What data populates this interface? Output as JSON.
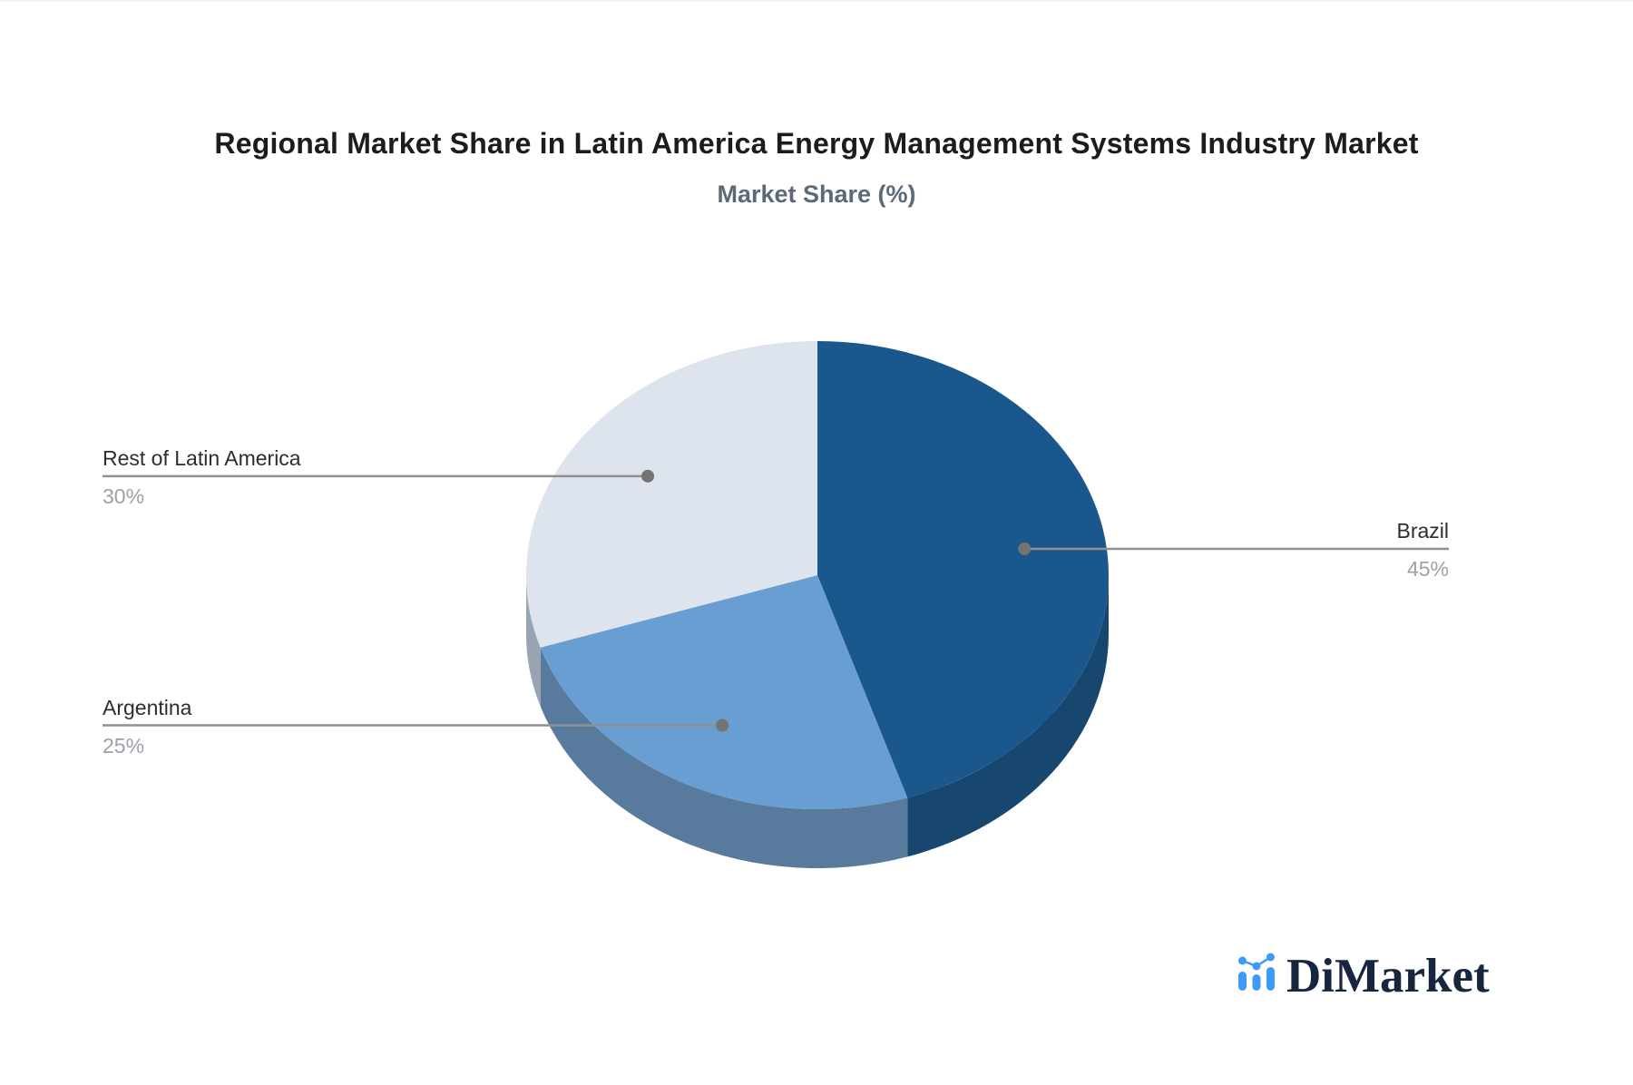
{
  "header": {
    "title": "Regional Market Share in Latin America Energy Management Systems Industry Market",
    "subtitle": "Market Share (%)"
  },
  "chart_data": {
    "type": "pie",
    "style": "3d",
    "title": "Regional Market Share in Latin America Energy Management Systems Industry Market",
    "subtitle": "Market Share (%)",
    "unit": "%",
    "direction": "clockwise",
    "start_angle_deg": 0,
    "legend_position": "none",
    "labels_layout": "leader-lines",
    "slices": [
      {
        "label": "Brazil",
        "value": 45,
        "value_label": "45%",
        "color": "#1A578D",
        "side_color": "#17466F",
        "label_side": "right"
      },
      {
        "label": "Argentina",
        "value": 25,
        "value_label": "25%",
        "color": "#689ED2",
        "side_color": "#587A9C",
        "label_side": "left"
      },
      {
        "label": "Rest of Latin America",
        "value": 30,
        "value_label": "30%",
        "color": "#DDE4EE",
        "side_color": "#99A4B2",
        "label_side": "left"
      }
    ],
    "colors": {
      "background": "#ffffff",
      "leader_line": "#8f8f8f",
      "leader_dot": "#737373",
      "label_text": "#2d2d2d",
      "value_text": "#9ba1a8",
      "title_text": "#1c1c1c",
      "subtitle_text": "#5b6a79"
    }
  },
  "logo": {
    "text": "DiMarket",
    "icon": "bar-line-chart-icon",
    "text_color": "#17253E",
    "icon_color": "#3E9AF7"
  }
}
